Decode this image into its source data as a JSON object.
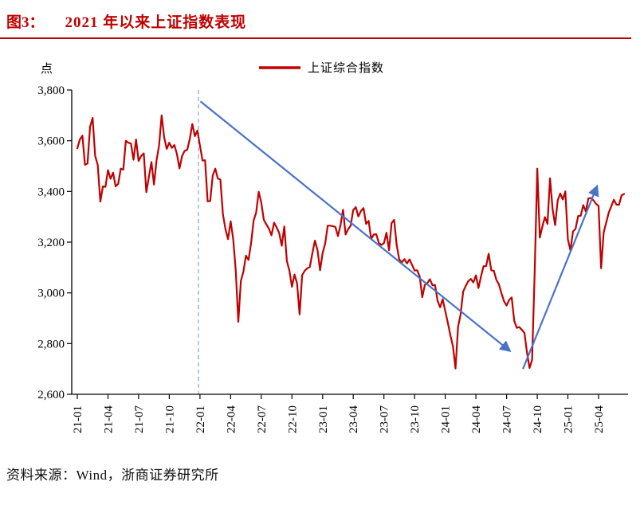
{
  "figure": {
    "label": "图3：",
    "title": "2021 年以来上证指数表现"
  },
  "source": {
    "text": "资料来源：Wind，浙商证券研究所"
  },
  "chart_data": {
    "type": "line",
    "title": "2021 年以来上证指数表现",
    "ylabel_unit": "点",
    "ylim": [
      2600,
      3800
    ],
    "yticks": [
      3800,
      3600,
      3400,
      3200,
      3000,
      2800,
      2600
    ],
    "xtick_labels": [
      "21-01",
      "21-04",
      "21-07",
      "21-10",
      "22-01",
      "22-04",
      "22-07",
      "22-10",
      "23-01",
      "23-04",
      "23-07",
      "23-10",
      "24-01",
      "24-04",
      "24-07",
      "24-10",
      "25-01",
      "25-04"
    ],
    "xtick_positions": [
      0,
      3,
      6,
      9,
      12,
      15,
      18,
      21,
      24,
      27,
      30,
      33,
      36,
      39,
      42,
      45,
      48,
      51
    ],
    "x_months_start": 0,
    "x_step": 0.25,
    "legend": [
      {
        "label": "上证综合指数",
        "color": "#C00000"
      }
    ],
    "series": [
      {
        "name": "上证综合指数",
        "color": "#C00000",
        "values": [
          3570,
          3605,
          3620,
          3505,
          3510,
          3655,
          3690,
          3540,
          3505,
          3360,
          3420,
          3418,
          3484,
          3450,
          3474,
          3420,
          3430,
          3490,
          3486,
          3600,
          3592,
          3589,
          3525,
          3605,
          3520,
          3540,
          3550,
          3397,
          3458,
          3516,
          3427,
          3522,
          3582,
          3700,
          3613,
          3568,
          3592,
          3572,
          3583,
          3547,
          3491,
          3539,
          3560,
          3564,
          3607,
          3666,
          3618,
          3640,
          3580,
          3522,
          3523,
          3361,
          3362,
          3463,
          3490,
          3451,
          3447,
          3310,
          3251,
          3212,
          3282,
          3212,
          3087,
          2886,
          3047,
          3084,
          3147,
          3130,
          3195,
          3285,
          3317,
          3399,
          3356,
          3288,
          3270,
          3253,
          3227,
          3277,
          3258,
          3236,
          3186,
          3262,
          3126,
          3088,
          3024,
          3072,
          3038,
          2915,
          3070,
          3087,
          3097,
          3102,
          3156,
          3206,
          3168,
          3089,
          3157,
          3195,
          3265,
          3265,
          3263,
          3260,
          3224,
          3267,
          3328,
          3230,
          3251,
          3265,
          3327,
          3338,
          3301,
          3323,
          3334,
          3272,
          3284,
          3213,
          3230,
          3231,
          3197,
          3189,
          3196,
          3237,
          3168,
          3275,
          3288,
          3189,
          3132,
          3120,
          3133,
          3116,
          3132,
          3110,
          3088,
          3089,
          3065,
          2983,
          3031,
          3039,
          3054,
          3030,
          3031,
          2969,
          2943,
          2975,
          2929,
          2882,
          2832,
          2789,
          2702,
          2866,
          2915,
          3005,
          3027,
          3046,
          3055,
          3041,
          3069,
          3019,
          3065,
          3105,
          3105,
          3154,
          3089,
          3087,
          3051,
          3033,
          2998,
          2967,
          2950,
          2972,
          2982,
          2890,
          2862,
          2865,
          2854,
          2842,
          2765,
          2704,
          2736,
          3088,
          3490,
          3218,
          3262,
          3299,
          3272,
          3452,
          3331,
          3267,
          3364,
          3392,
          3368,
          3400,
          3211,
          3168,
          3242,
          3252,
          3303,
          3304,
          3346,
          3321,
          3372,
          3374,
          3365,
          3351,
          3343,
          3097,
          3238,
          3277,
          3317,
          3342,
          3367,
          3348,
          3347,
          3385,
          3390
        ]
      }
    ],
    "annotations": {
      "dashed_vline": {
        "month": 11.85,
        "color": "#8FAADC"
      },
      "arrow_color": "#4A73C4",
      "arrows": [
        {
          "from": [
            12.05,
            3755
          ],
          "to": [
            42.2,
            2775
          ]
        },
        {
          "from": [
            43.6,
            2700
          ],
          "to": [
            50.8,
            3415
          ]
        }
      ]
    }
  }
}
